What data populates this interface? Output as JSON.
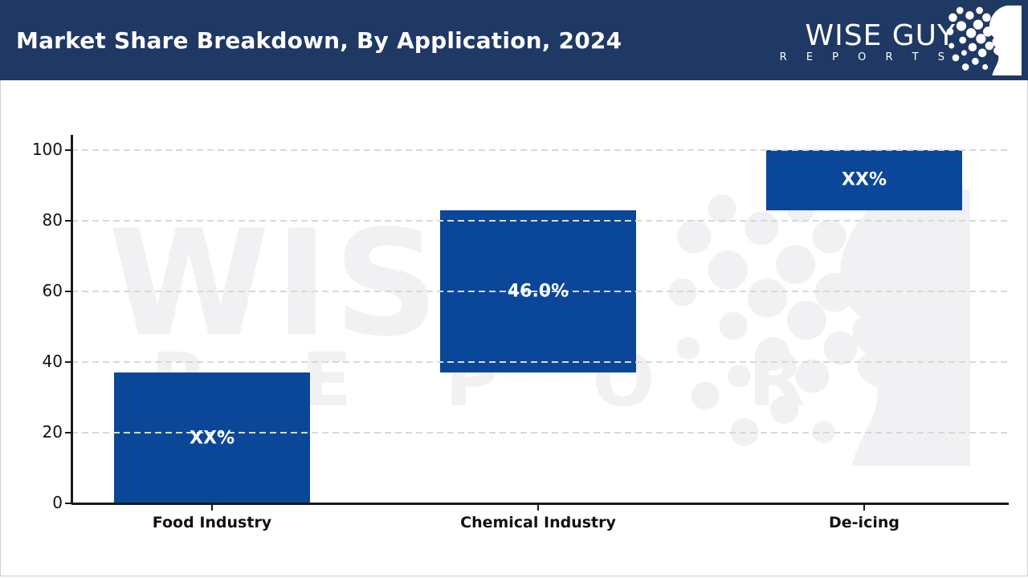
{
  "header": {
    "title": "Market Share Breakdown, By Application, 2024",
    "bg_color": "#1f3864",
    "logo": {
      "line1": "WISE GUY",
      "line2": "R E P O R T S",
      "face_icon": "face-profile-dots-icon"
    }
  },
  "watermark": {
    "line1": "WISE",
    "line2": "R E P O R T S",
    "face_icon": "face-profile-dots-icon"
  },
  "chart_data": {
    "type": "bar",
    "subtype": "floating-waterfall",
    "title": "Market Share Breakdown, By Application, 2024",
    "xlabel": "",
    "ylabel": "",
    "ylim": [
      0,
      100
    ],
    "yticks": [
      0,
      20,
      40,
      60,
      80,
      100
    ],
    "grid": "horizontal-dashed",
    "legend": "none",
    "bar_color": "#0b4798",
    "axis_color": "#1a1a1a",
    "gridline_color": "#d9d9d9",
    "categories": [
      "Food Industry",
      "Chemical Industry",
      "De-icing"
    ],
    "segments": [
      {
        "category": "Food Industry",
        "start": 0,
        "end": 37,
        "value": 37,
        "label": "XX%"
      },
      {
        "category": "Chemical Industry",
        "start": 37,
        "end": 83,
        "value": 46.0,
        "label": "46.0%"
      },
      {
        "category": "De-icing",
        "start": 83,
        "end": 100,
        "value": 17,
        "label": "XX%"
      }
    ]
  }
}
